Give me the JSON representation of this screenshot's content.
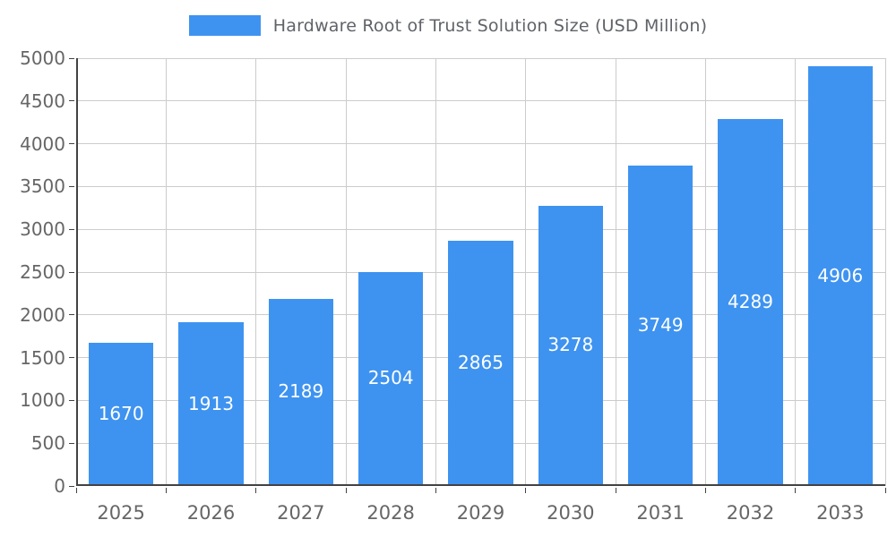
{
  "chart_data": {
    "type": "bar",
    "title": "Hardware Root of Trust Solution Size (USD Million)",
    "categories": [
      "2025",
      "2026",
      "2027",
      "2028",
      "2029",
      "2030",
      "2031",
      "2032",
      "2033"
    ],
    "values": [
      1670,
      1913,
      2189,
      2504,
      2865,
      3278,
      3749,
      4289,
      4906
    ],
    "xlabel": "",
    "ylabel": "",
    "ylim": [
      0,
      5000
    ],
    "yticks": [
      0,
      500,
      1000,
      1500,
      2000,
      2500,
      3000,
      3500,
      4000,
      4500,
      5000
    ],
    "grid": true,
    "legend_position": "top",
    "value_labels": "inside-center",
    "colors": {
      "bar": "#3E93F0",
      "value_label": "#ffffff",
      "axis": "#424242",
      "grid": "#cccccc",
      "tick_label": "#666666",
      "title": "#5f6368",
      "background": "#ffffff"
    }
  }
}
